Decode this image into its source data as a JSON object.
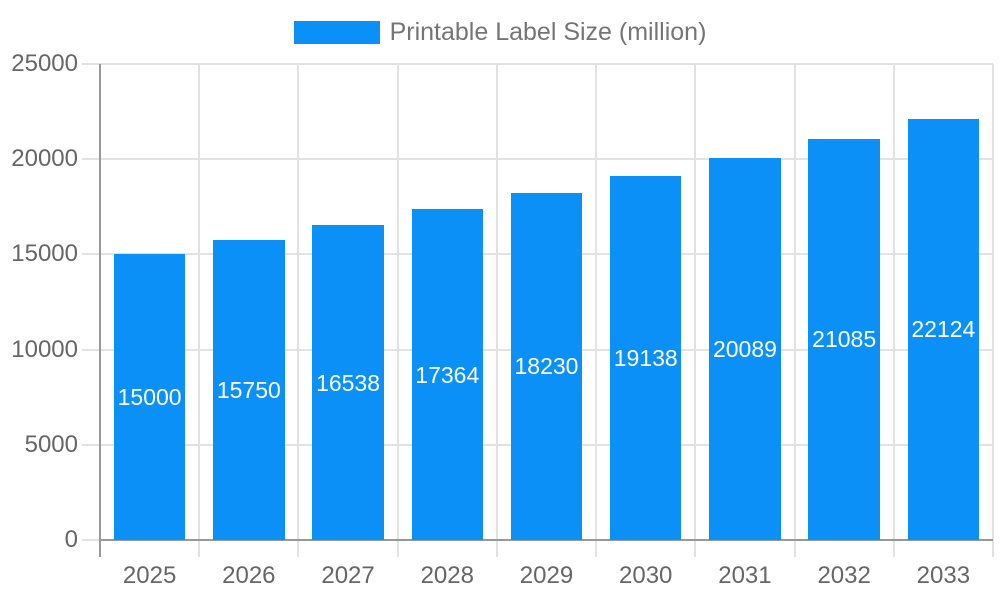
{
  "chart_data": {
    "type": "bar",
    "title": "Printable Label Size (million)",
    "categories": [
      "2025",
      "2026",
      "2027",
      "2028",
      "2029",
      "2030",
      "2031",
      "2032",
      "2033"
    ],
    "series": [
      {
        "name": "Printable Label Size (million)",
        "values": [
          15000,
          15750,
          16538,
          17364,
          18230,
          19138,
          20089,
          21085,
          22124
        ]
      }
    ],
    "bar_labels": [
      "15000",
      "15750",
      "16538",
      "17364",
      "18230",
      "19138",
      "20089",
      "21085",
      "22124"
    ],
    "xlabel": "",
    "ylabel": "",
    "ylim": [
      0,
      25000
    ],
    "yticks": [
      0,
      5000,
      10000,
      15000,
      20000,
      25000
    ],
    "ytick_labels": [
      "0",
      "5000",
      "10000",
      "15000",
      "20000",
      "25000"
    ],
    "grid": true,
    "legend_position": "top-center",
    "bar_label_position": "inside-middle",
    "colors": {
      "bar": "#0a90f7",
      "grid": "#e2e2e2",
      "tick": "#cccccc",
      "axis": "#999999",
      "tick_label": "#666666",
      "legend_text": "#757575",
      "bar_label": "#ffffff",
      "background": "#ffffff"
    }
  }
}
